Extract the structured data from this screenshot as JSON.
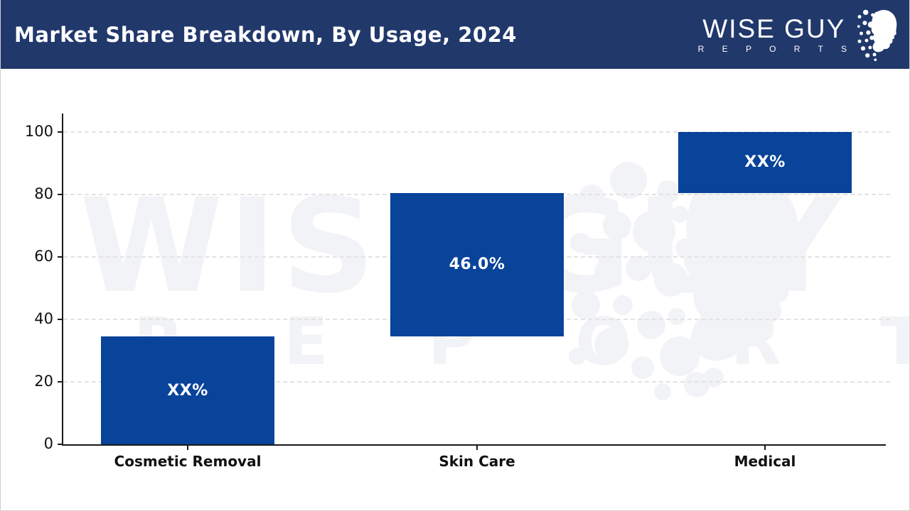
{
  "header": {
    "title": "Market Share Breakdown, By Usage, 2024",
    "logo": {
      "name": "WISE GUY",
      "sub": "R E P O R T S"
    }
  },
  "watermark": {
    "line1": "WISE GUY",
    "line2": "R E P O R T S"
  },
  "colors": {
    "header_bg": "#21386b",
    "bar": "#09439a",
    "grid": "#e3e3e3",
    "axis": "#1a1a1a",
    "watermark": "#f2f3f6",
    "bar_label_text": "#ffffff"
  },
  "chart_data": {
    "type": "bar",
    "subtype": "floating-segments",
    "title": "Market Share Breakdown, By Usage, 2024",
    "categories": [
      "Cosmetic Removal",
      "Skin Care",
      "Medical"
    ],
    "segments": [
      {
        "category": "Cosmetic Removal",
        "start": 0,
        "end": 34.5,
        "label": "XX%"
      },
      {
        "category": "Skin Care",
        "start": 34.5,
        "end": 80.5,
        "label": "46.0%"
      },
      {
        "category": "Medical",
        "start": 80.5,
        "end": 100,
        "label": "XX%"
      }
    ],
    "xlabel": "",
    "ylabel": "",
    "yticks": [
      0,
      20,
      40,
      60,
      80,
      100
    ],
    "ylim": [
      0,
      106
    ],
    "grid": "horizontal-dashed",
    "legend": "none"
  }
}
